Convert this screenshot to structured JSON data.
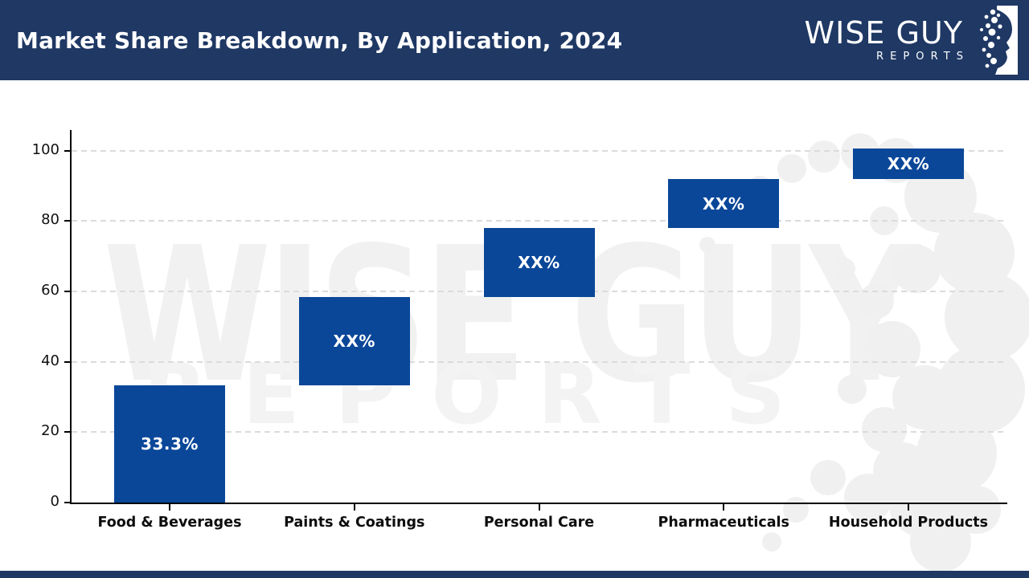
{
  "header": {
    "title": "Market Share Breakdown, By Application, 2024",
    "brand": {
      "line1": "WISE GUY",
      "line2": "REPORTS"
    }
  },
  "watermark": {
    "line1": "WISE GUY",
    "line2": "REPORTS"
  },
  "chart_data": {
    "type": "bar",
    "subtype": "floating-waterfall",
    "title": "Market Share Breakdown, By Application, 2024",
    "categories": [
      "Food & Beverages",
      "Paints & Coatings",
      "Personal Care",
      "Pharmaceuticals",
      "Household Products"
    ],
    "segments": [
      {
        "category": "Food & Beverages",
        "start": 0,
        "end": 33.3,
        "value_label": "33.3%",
        "approx_value": 33.3
      },
      {
        "category": "Paints & Coatings",
        "start": 33.3,
        "end": 58.3,
        "value_label": "XX%",
        "approx_value": 25.0
      },
      {
        "category": "Personal Care",
        "start": 58.3,
        "end": 77.9,
        "value_label": "XX%",
        "approx_value": 19.6
      },
      {
        "category": "Pharmaceuticals",
        "start": 77.9,
        "end": 91.9,
        "value_label": "XX%",
        "approx_value": 14.0
      },
      {
        "category": "Household Products",
        "start": 91.9,
        "end": 100.5,
        "value_label": "XX%",
        "approx_value": 8.6
      }
    ],
    "xlabel": "",
    "ylabel": "",
    "ylim": [
      0,
      105
    ],
    "y_ticks": [
      0,
      20,
      40,
      60,
      80,
      100
    ],
    "grid": "horizontal dashed",
    "legend": "none",
    "bar_color": "#0a4799",
    "bar_label_color": "#ffffff"
  },
  "colors": {
    "header_bg": "#1f3864",
    "footer_bg": "#1f3864",
    "title_text": "#ffffff",
    "bar_fill": "#0a4799",
    "gridline": "#dbdbdb",
    "axis": "#000000",
    "watermark": "#f1f1f1"
  }
}
